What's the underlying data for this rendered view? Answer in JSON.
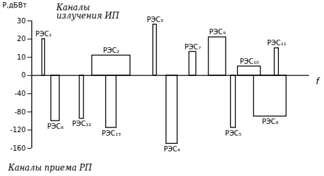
{
  "chart_data": {
    "type": "bar",
    "y_label": "P,дБВт",
    "x_label": "f",
    "annotations": [
      "Каналы\nизлучения ИП",
      "Каналы приема РП"
    ],
    "categories": [
      "РЭС₁",
      "РЭС₆",
      "РЭС₁₂",
      "РЭС₂",
      "РЭС₁₃",
      "РЭС₃",
      "РЭС₄",
      "РЭС₇",
      "РЭС₉",
      "РЭС₅",
      "РЭС₁₀",
      "РЭС₈",
      "РЭС₁₁"
    ],
    "values": [
      20,
      -100,
      -95,
      11,
      -115,
      28,
      -150,
      13,
      21,
      -115,
      5,
      -90,
      15
    ],
    "x": [
      [
        15,
        19
      ],
      [
        28,
        40
      ],
      [
        69,
        75
      ],
      [
        87,
        142
      ],
      [
        107,
        122
      ],
      [
        175,
        180
      ],
      [
        194,
        210
      ],
      [
        227,
        237
      ],
      [
        255,
        280
      ],
      [
        287,
        294
      ],
      [
        297,
        330
      ],
      [
        320,
        367
      ],
      [
        350,
        356
      ]
    ],
    "xlim": [
      0,
      400
    ],
    "ylim": [
      -160,
      30
    ],
    "yticks": [
      -160,
      -120,
      -80,
      -40,
      0,
      10,
      20,
      30
    ],
    "color": "black",
    "tick_labels": "y",
    "grid": false
  }
}
